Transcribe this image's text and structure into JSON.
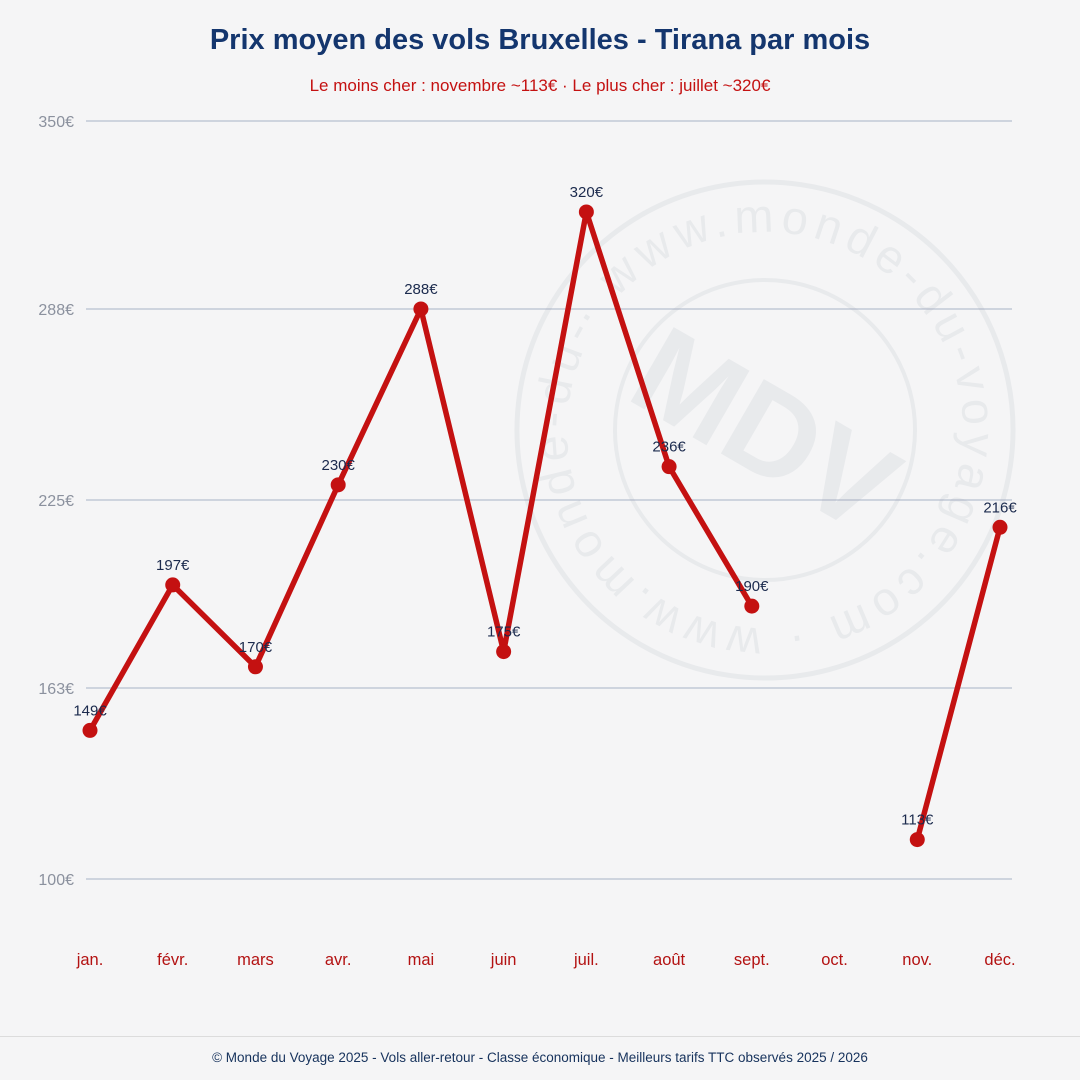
{
  "header": {
    "title": "Prix moyen des vols Bruxelles - Tirana par mois",
    "subtitle": "Le moins cher : novembre ~113€ · Le plus cher : juillet ~320€"
  },
  "chart_data": {
    "type": "line",
    "title": "Prix moyen des vols Bruxelles - Tirana par mois",
    "categories": [
      "jan.",
      "févr.",
      "mars",
      "avr.",
      "mai",
      "juin",
      "juil.",
      "août",
      "sept.",
      "oct.",
      "nov.",
      "déc."
    ],
    "values": [
      149,
      197,
      170,
      230,
      288,
      175,
      320,
      236,
      190,
      null,
      113,
      216
    ],
    "unit": "€",
    "y_ticks": [
      350,
      288,
      225,
      163,
      100
    ],
    "ylim": [
      100,
      350
    ],
    "grid": true,
    "legend": "none",
    "line_color": "#c41111",
    "point_label_color": "#1b2a4d",
    "axis_label_color": "#b31212",
    "tick_label_color": "#8b919e",
    "grid_color": "#b7c0cf"
  },
  "watermark": {
    "ring_text": "www.monde-du-voyage.com",
    "center_text": "MDV"
  },
  "footer": {
    "text": "© Monde du Voyage 2025 - Vols aller-retour - Classe économique - Meilleurs tarifs TTC observés 2025 / 2026"
  }
}
